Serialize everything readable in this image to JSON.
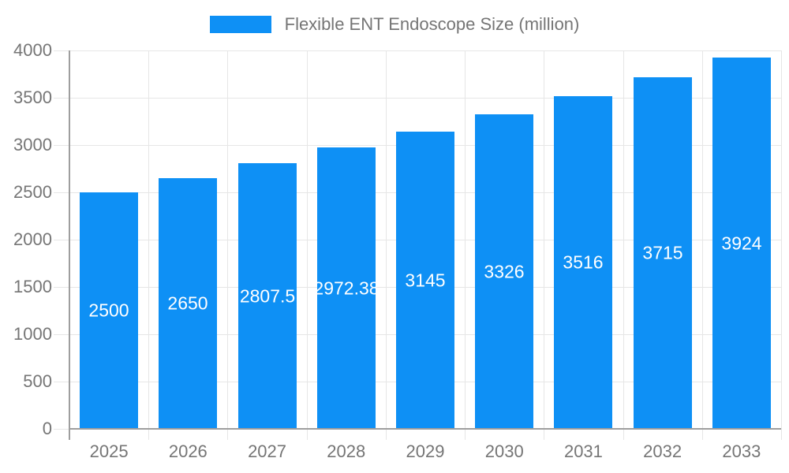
{
  "chart_data": {
    "type": "bar",
    "title": "Flexible ENT Endoscope Size (million)",
    "categories": [
      "2025",
      "2026",
      "2027",
      "2028",
      "2029",
      "2030",
      "2031",
      "2032",
      "2033"
    ],
    "series": [
      {
        "name": "Flexible ENT Endoscope Size (million)",
        "values": [
          2500,
          2650,
          2807.5,
          2972.38,
          3145,
          3326,
          3516,
          3715,
          3924
        ],
        "value_labels": [
          "2500",
          "2650",
          "2807.5",
          "2972.38",
          "3145",
          "3326",
          "3516",
          "3715",
          "3924"
        ]
      }
    ],
    "xlabel": "",
    "ylabel": "",
    "ylim": [
      0,
      4000
    ],
    "ytick_step": 500,
    "ytick_labels": [
      "0",
      "500",
      "1000",
      "1500",
      "2000",
      "2500",
      "3000",
      "3500",
      "4000"
    ],
    "grid": true,
    "legend_position": "top-center",
    "colors": {
      "bar": "#0e90f5",
      "value_label_text": "#ffffff",
      "axis_line": "#9e9e9e",
      "grid_line": "#e6e6e6",
      "tick_text": "#757575",
      "legend_text": "#757575"
    }
  }
}
